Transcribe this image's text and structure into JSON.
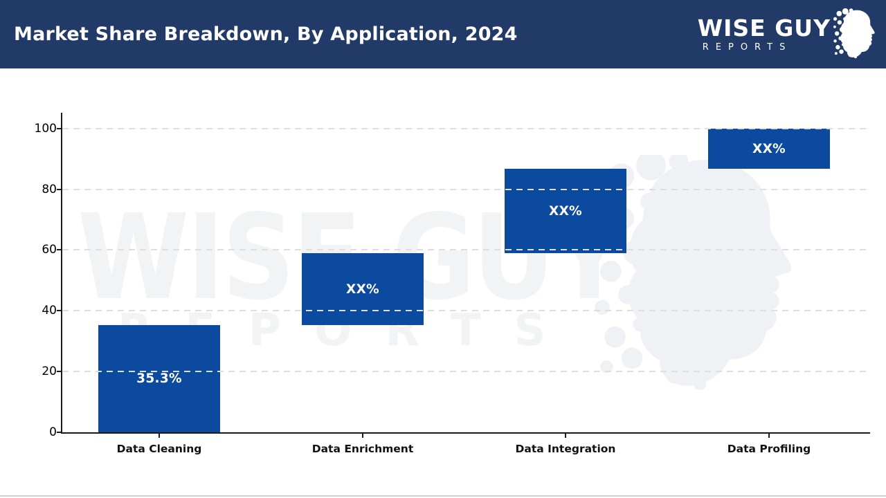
{
  "header": {
    "title": "Market Share Breakdown, By Application, 2024",
    "brand": {
      "name": "WISE GUY",
      "tagline": "REPORTS",
      "face_icon": "head-profile-dots-icon"
    }
  },
  "watermark": {
    "word1": "WISE GUY",
    "word2": "REPORTS",
    "face_icon": "head-profile-dots-watermark-icon"
  },
  "chart_data": {
    "type": "bar",
    "subtype": "waterfall",
    "title": "Market Share Breakdown, By Application, 2024",
    "categories": [
      "Data Cleaning",
      "Data Enrichment",
      "Data Integration",
      "Data Profiling"
    ],
    "series": [
      {
        "name": "Market share (%)",
        "segments": [
          {
            "category": "Data Cleaning",
            "start": 0,
            "end": 35.3,
            "label": "35.3%"
          },
          {
            "category": "Data Enrichment",
            "start": 35.3,
            "end": 59.0,
            "label": "XX%"
          },
          {
            "category": "Data Integration",
            "start": 59.0,
            "end": 86.8,
            "label": "XX%"
          },
          {
            "category": "Data Profiling",
            "start": 86.8,
            "end": 100,
            "label": "XX%"
          }
        ]
      }
    ],
    "xlabel": "",
    "ylabel": "",
    "ylim": [
      0,
      100
    ],
    "yticks": [
      0,
      20,
      40,
      60,
      80,
      100
    ],
    "grid": "horizontal-dashed",
    "legend": "none",
    "colors": {
      "bar": "#0b4a9f",
      "bar_label": "#ffffff",
      "axis": "#1a1a1a",
      "gridline": "#dedede",
      "header_bg": "#213a67",
      "watermark": "#f2f3f5"
    }
  }
}
